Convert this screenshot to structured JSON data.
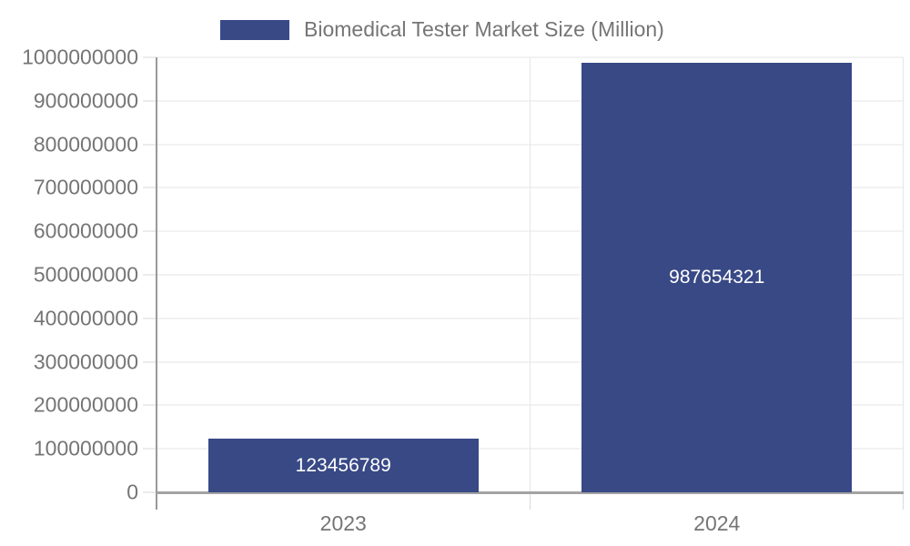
{
  "chart_data": {
    "type": "bar",
    "title": "Biomedical Tester Market Size (Million)",
    "categories": [
      "2023",
      "2024"
    ],
    "values": [
      123456789,
      987654321
    ],
    "bar_value_labels": [
      "123456789",
      "987654321"
    ],
    "ylim": [
      0,
      1000000000
    ],
    "ytick_step": 100000000,
    "ytick_labels": [
      "0",
      "100000000",
      "200000000",
      "300000000",
      "400000000",
      "500000000",
      "600000000",
      "700000000",
      "800000000",
      "900000000",
      "1000000000"
    ],
    "xlabel": "",
    "ylabel": "",
    "grid": true,
    "legend": {
      "position": "top",
      "label": "Biomedical Tester Market Size (Million)"
    },
    "colors": {
      "bar": "#384986",
      "grid": "#e6e6e6",
      "axis": "#a3a3a3",
      "tick": "#d9d9d9",
      "axis_text": "#757575",
      "bar_label_text": "#ffffff"
    }
  }
}
